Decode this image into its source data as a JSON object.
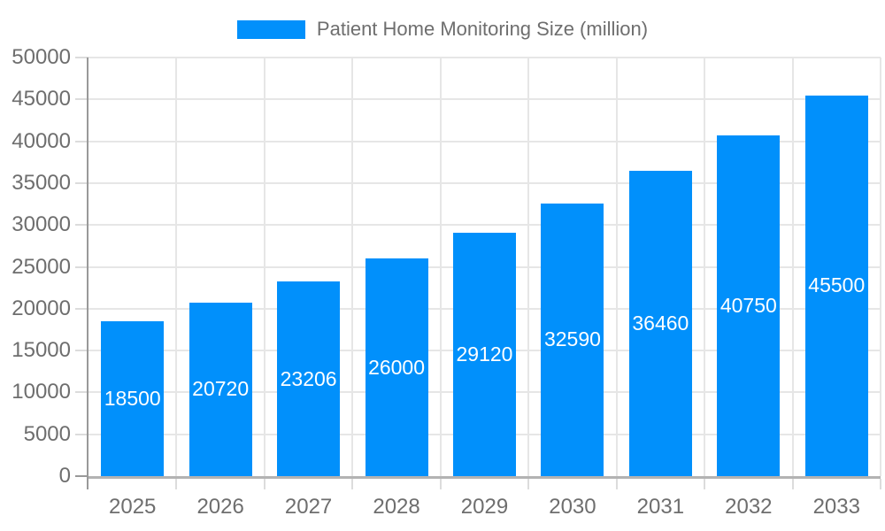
{
  "colors": {
    "bar": "#0190fb",
    "bar_label": "#ffffff",
    "axis_text": "#6e6e6e",
    "legend_text": "#6e6e6e",
    "y_axis_line": "#999999",
    "x_axis_line": "#b3b3b3",
    "grid_line": "#e6e6e6",
    "tick_line": "#dcdcdc",
    "background": "#ffffff"
  },
  "chart_data": {
    "type": "bar",
    "title": "Patient Home Monitoring Size (million)",
    "categories": [
      "2025",
      "2026",
      "2027",
      "2028",
      "2029",
      "2030",
      "2031",
      "2032",
      "2033"
    ],
    "series": [
      {
        "name": "Patient Home Monitoring Size (million)",
        "values": [
          18500,
          20720,
          23206,
          26000,
          29120,
          32590,
          36460,
          40750,
          45500
        ]
      }
    ],
    "xlabel": "",
    "ylabel": "",
    "ylim": [
      0,
      50000
    ],
    "y_tick_step": 5000,
    "grid": true,
    "legend_position": "top-center",
    "data_labels": {
      "position": "inside-center"
    }
  }
}
